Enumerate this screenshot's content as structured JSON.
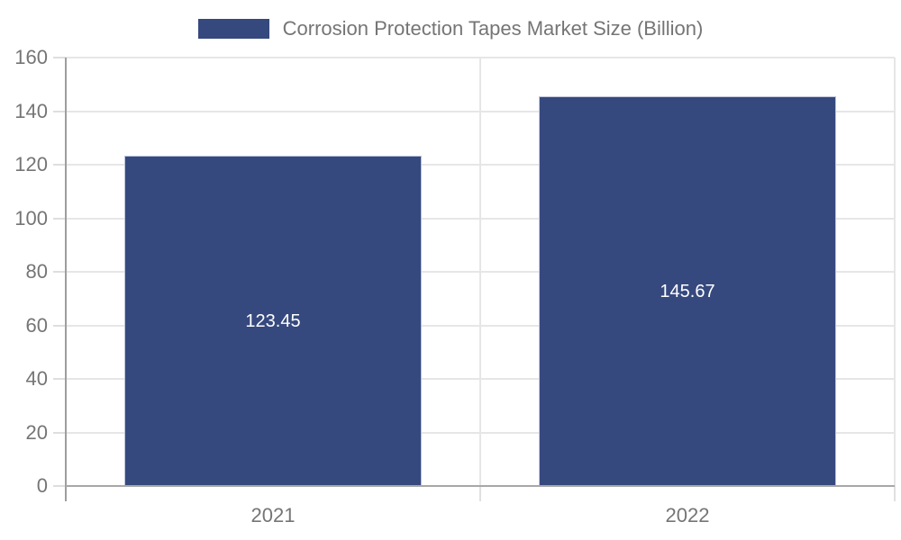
{
  "legend": {
    "label": "Corrosion Protection Tapes Market Size (Billion)",
    "swatch_color": "#36497E"
  },
  "chart_data": {
    "type": "bar",
    "title": "Corrosion Protection Tapes Market Size (Billion)",
    "categories": [
      "2021",
      "2022"
    ],
    "values": [
      123.45,
      145.67
    ],
    "bar_labels": [
      "123.45",
      "145.67"
    ],
    "xlabel": "",
    "ylabel": "",
    "ylim": [
      0,
      160
    ],
    "yticks": [
      0,
      20,
      40,
      60,
      80,
      100,
      120,
      140,
      160
    ],
    "grid": true,
    "legend_position": "top-center",
    "value_label_position": "center-of-bar",
    "colors": {
      "bar": "#36497E",
      "bar_edge": "#bcc3d9",
      "grid": "#e6e6e6",
      "axis": "#9e9e9e",
      "tick_label": "#757575",
      "legend_text": "#757575",
      "value_label": "#ffffff",
      "background": "#ffffff"
    }
  }
}
